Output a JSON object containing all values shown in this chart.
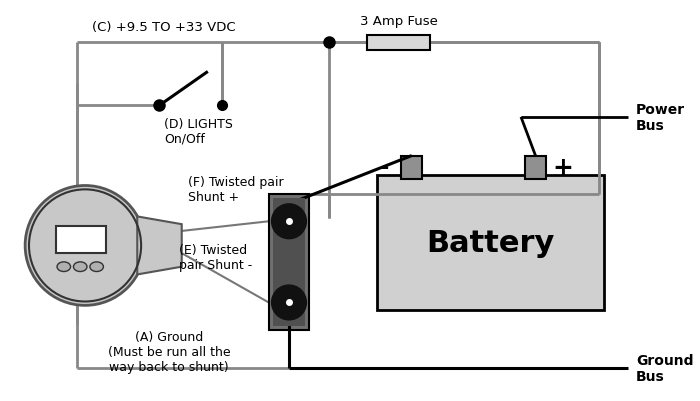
{
  "bg_color": "#ffffff",
  "line_color": "#000000",
  "battery_fill": "#d0d0d0",
  "battery_text": "Battery",
  "fuse_label": "3 Amp Fuse",
  "label_C": "(C) +9.5 TO +33 VDC",
  "label_D": "(D) LIGHTS\nOn/Off",
  "label_F": "(F) Twisted pair\nShunt +",
  "label_E": "(E) Twisted\npair Shunt -",
  "label_A": "(A) Ground\n(Must be run all the\nway back to shunt)",
  "label_power_bus": "Power\nBus",
  "label_ground_bus": "Ground\nBus",
  "shunt_fill": "#707070",
  "shunt_inner": "#505050",
  "terminal_fill": "#909090",
  "wire_gray": "#888888"
}
